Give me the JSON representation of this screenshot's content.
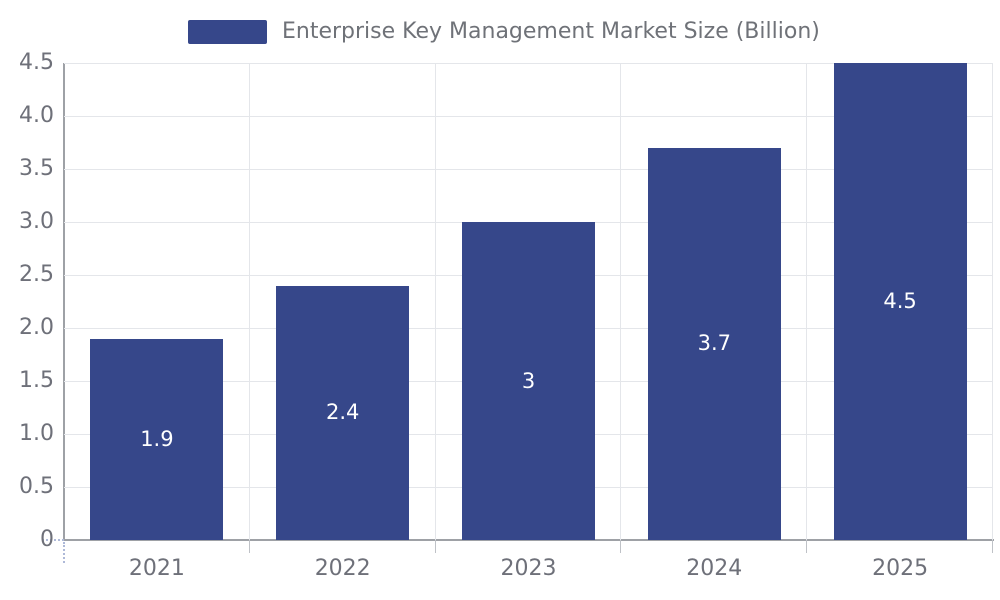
{
  "chart_data": {
    "type": "bar",
    "title": "Enterprise Key Management Market Size (Billion)",
    "legend": {
      "label": "Enterprise Key Management Market Size (Billion)",
      "position": "top"
    },
    "categories": [
      "2021",
      "2022",
      "2023",
      "2024",
      "2025"
    ],
    "values": [
      1.9,
      2.4,
      3,
      3.7,
      4.5
    ],
    "value_labels": [
      "1.9",
      "2.4",
      "3",
      "3.7",
      "4.5"
    ],
    "xlabel": "",
    "ylabel": "",
    "ylim": [
      0,
      4.5
    ],
    "y_ticks": [
      0,
      0.5,
      1,
      1.5,
      2,
      2.5,
      3,
      3.5,
      4,
      4.5
    ],
    "y_tick_labels": [
      "0",
      "0.5",
      "1.0",
      "1.5",
      "2.0",
      "2.5",
      "3.0",
      "3.5",
      "4.0",
      "4.5"
    ],
    "grid": true,
    "colors": {
      "bar": "#36478A",
      "axis_line": "#9EA1A6",
      "gridline": "#E4E6EA",
      "tick_mark": "#BFC2C7",
      "origin_tick": "#AEB9D8",
      "axis_text": "#6E7079",
      "legend_text": "#6F7278",
      "bar_label_text": "#FFFFFF",
      "background": "#FFFFFF"
    }
  }
}
